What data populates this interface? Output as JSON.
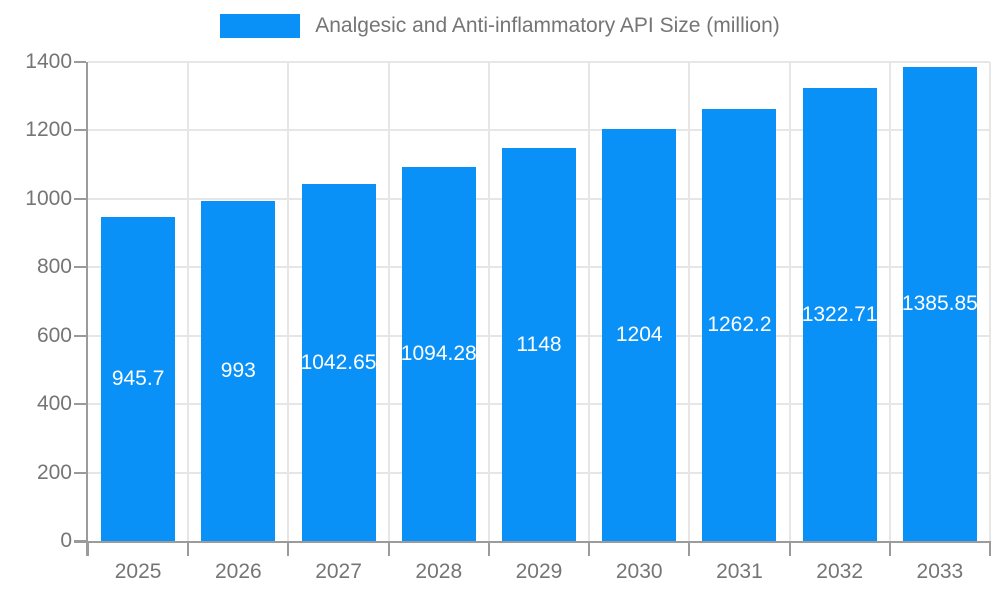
{
  "chart_data": {
    "type": "bar",
    "title": "Analgesic and Anti-inflammatory API Size (million)",
    "legend_position": "top",
    "categories": [
      "2025",
      "2026",
      "2027",
      "2028",
      "2029",
      "2030",
      "2031",
      "2032",
      "2033"
    ],
    "values": [
      945.7,
      993,
      1042.65,
      1094.28,
      1148,
      1204,
      1262.2,
      1322.71,
      1385.85
    ],
    "value_labels": [
      "945.7",
      "993",
      "1042.65",
      "1094.28",
      "1148",
      "1204",
      "1262.2",
      "1322.71",
      "1385.85"
    ],
    "xlabel": "",
    "ylabel": "",
    "ylim": [
      0,
      1400
    ],
    "ytick_step": 200,
    "ytick_labels": [
      "0",
      "200",
      "400",
      "600",
      "800",
      "1000",
      "1200",
      "1400"
    ],
    "grid": true,
    "colors": {
      "bar": "#0991f8",
      "grid": "#e6e6e6",
      "axis": "#9b9b9b",
      "tick_label": "#757575",
      "bar_label": "#ffffff",
      "background": "#ffffff"
    }
  }
}
